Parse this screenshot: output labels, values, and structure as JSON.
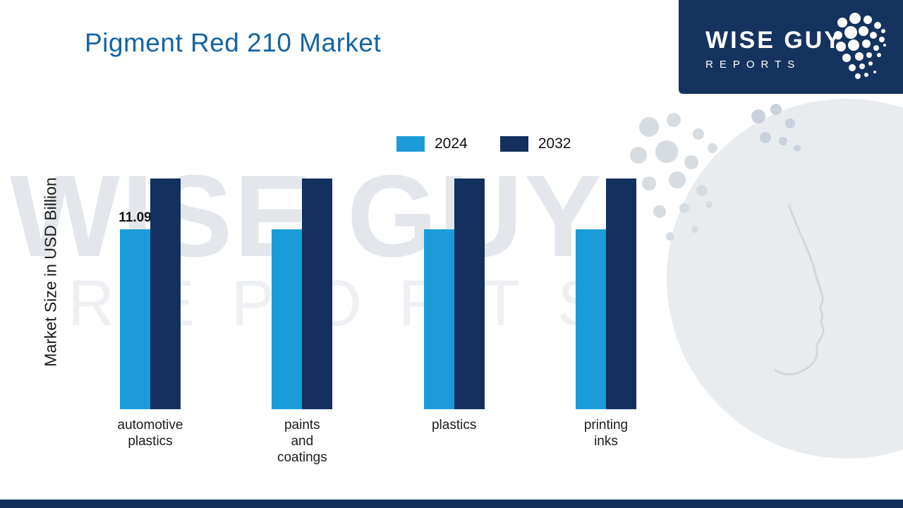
{
  "page": {
    "title": "Pigment Red 210 Market",
    "ylabel": "Market Size in USD Billion"
  },
  "logo": {
    "line1": "WISE GUY",
    "line2": "REPORTS"
  },
  "watermark": {
    "line1": "WISE GUY",
    "line2": "REPORTS"
  },
  "legend": [
    {
      "label": "2024",
      "color": "#1b9cd9"
    },
    {
      "label": "2032",
      "color": "#13305e"
    }
  ],
  "chart_data": {
    "type": "bar",
    "title": "Pigment Red 210 Market",
    "xlabel": "",
    "ylabel": "Market Size in USD Billion",
    "categories": [
      "automotive plastics",
      "paints and coatings",
      "plastics",
      "printing inks"
    ],
    "category_display": [
      "automotive\nplastics",
      "paints\nand\ncoatings",
      "plastics",
      "printing\ninks"
    ],
    "series": [
      {
        "name": "2024",
        "color": "#1b9cd9",
        "values": [
          11.09,
          11.09,
          11.09,
          11.09
        ]
      },
      {
        "name": "2032",
        "color": "#13305e",
        "values": [
          14.2,
          14.2,
          14.2,
          14.2
        ]
      }
    ],
    "ylim": [
      0,
      16
    ],
    "grid": false,
    "legend_position": "top",
    "data_label": {
      "text": "11.09",
      "series_index": 0,
      "category_index": 0
    }
  },
  "colors": {
    "title_blue": "#1464a4",
    "bar_2024": "#1b9cd9",
    "bar_2032": "#13305e",
    "logo_navy": "#14335f",
    "footer_navy": "#122f5c",
    "circle_gray": "#e9ecef"
  }
}
